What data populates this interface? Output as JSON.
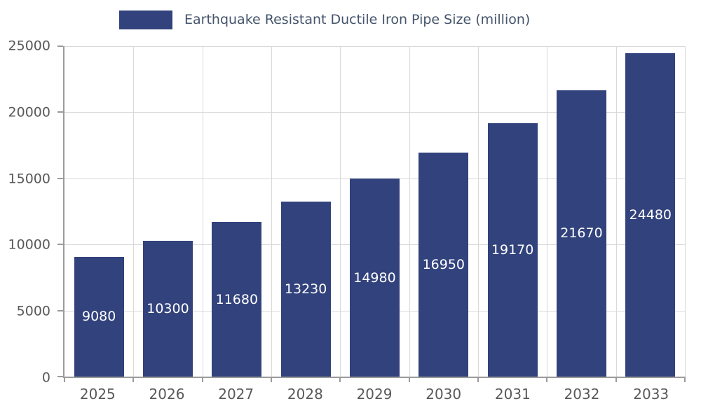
{
  "chart_data": {
    "type": "bar",
    "title": "Earthquake Resistant Ductile Iron Pipe Size (million)",
    "categories": [
      "2025",
      "2026",
      "2027",
      "2028",
      "2029",
      "2030",
      "2031",
      "2032",
      "2033"
    ],
    "values": [
      9080,
      10300,
      11680,
      13230,
      14980,
      16950,
      19170,
      21670,
      24480
    ],
    "xlabel": "",
    "ylabel": "",
    "ylim": [
      0,
      25000
    ],
    "yticks": [
      0,
      5000,
      10000,
      15000,
      20000,
      25000
    ],
    "grid": true,
    "legend_position": "top",
    "value_labels": "inside-center",
    "colors": {
      "bar": "#32427C",
      "value_label": "#FFFFFF",
      "axis_text": "#595959",
      "legend_text": "#44546A",
      "grid_line": "#D9D9D9",
      "axis_line": "#9B9B9B"
    }
  }
}
